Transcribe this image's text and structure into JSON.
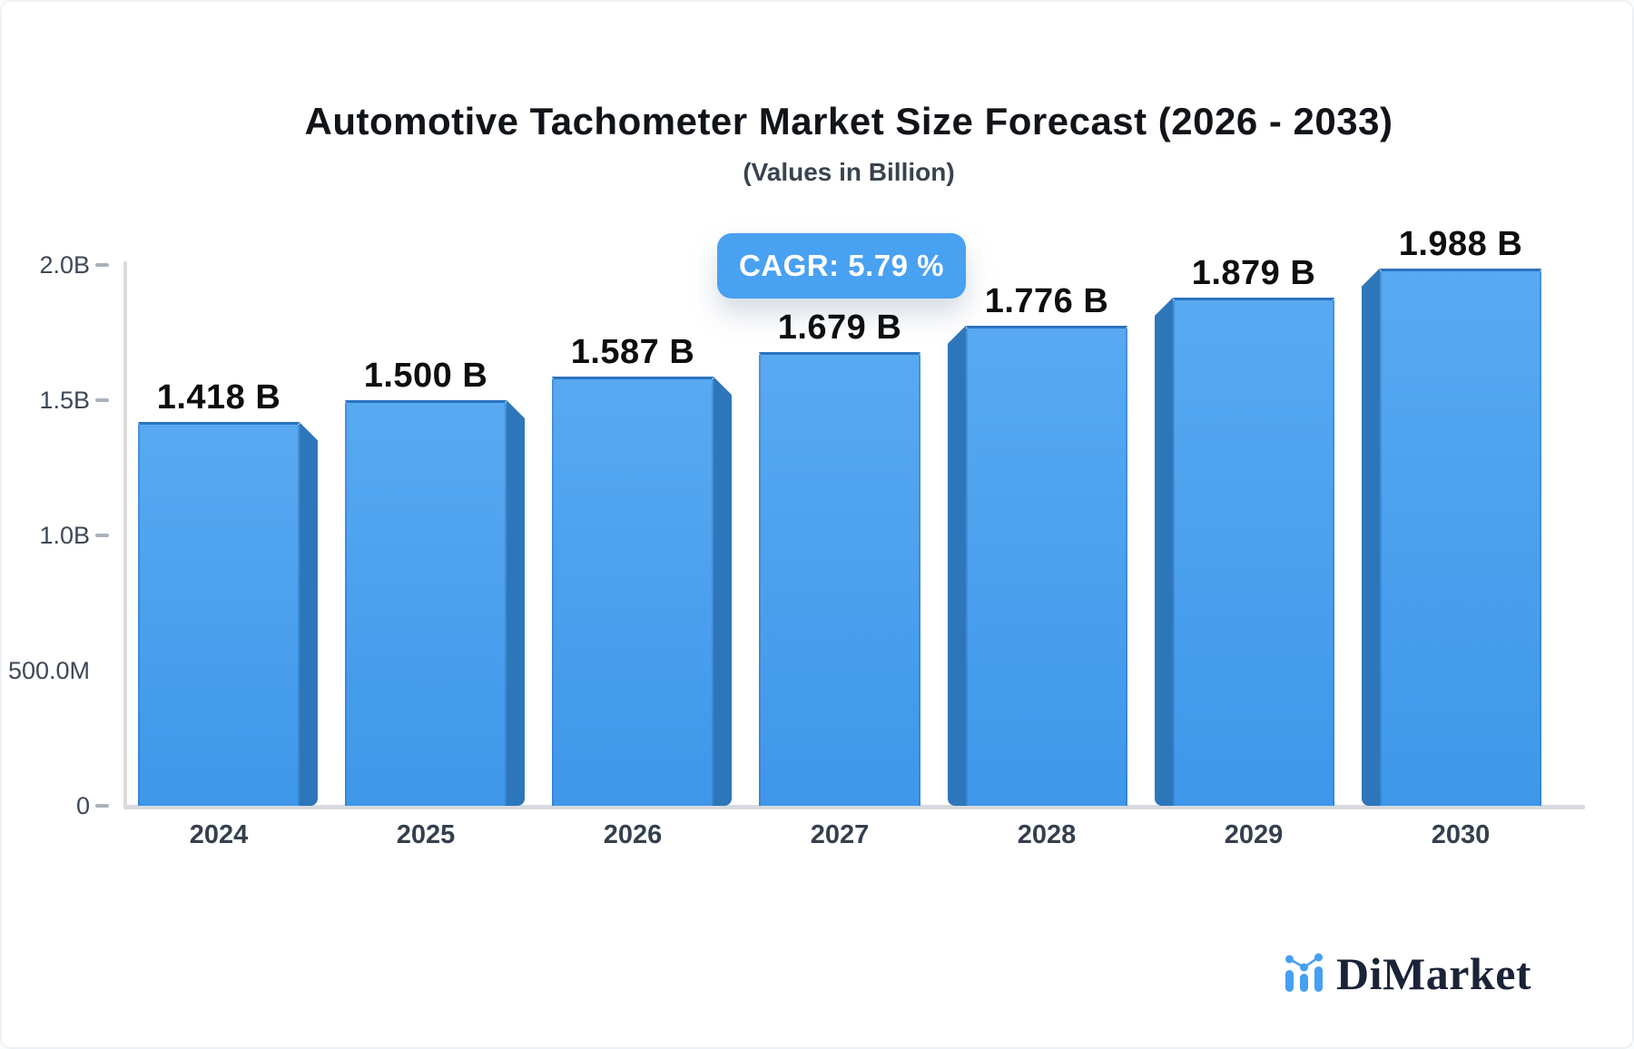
{
  "header": {
    "title": "Automotive Tachometer Market Size Forecast (2026 - 2033)",
    "subtitle": "(Values in Billion)",
    "cagr_label": "CAGR: 5.79 %"
  },
  "chart_data": {
    "type": "bar",
    "title": "Automotive Tachometer Market Size Forecast (2026 - 2033)",
    "subtitle": "(Values in Billion)",
    "unit": "Billion USD",
    "categories": [
      "2024",
      "2025",
      "2026",
      "2027",
      "2028",
      "2029",
      "2030"
    ],
    "values": [
      1.418,
      1.5,
      1.587,
      1.679,
      1.776,
      1.879,
      1.988
    ],
    "value_labels": [
      "1.418 B",
      "1.500 B",
      "1.587 B",
      "1.679 B",
      "1.776 B",
      "1.879 B",
      "1.988 B"
    ],
    "cagr_text": "CAGR: 5.79 %",
    "ylim": [
      0,
      2.0
    ],
    "y_ticks": [
      {
        "label": "2.0B",
        "value": 2.0,
        "dash": true
      },
      {
        "label": "1.5B",
        "value": 1.5,
        "dash": true
      },
      {
        "label": "1.0B",
        "value": 1.0,
        "dash": true
      },
      {
        "label": "500.0M",
        "value": 0.5,
        "dash": false
      },
      {
        "label": "0",
        "value": 0.0,
        "dash": true
      }
    ],
    "grid": false,
    "legend": false,
    "bar_style": "3d-beveled"
  },
  "colors": {
    "bar_face_top": "#58A9F1",
    "bar_face_bottom": "#3F97EA",
    "bar_side": "#2E76BA",
    "bar_top_edge": "#2A73BF",
    "bar_edge_soft": "rgba(38,104,176,0.35)",
    "badge_bg": "#49A1F1",
    "badge_text": "#FFFFFF",
    "axis_line": "#D7DADE",
    "tick_dash": "#AAB1BB",
    "logo_blue": "#459FF2",
    "logo_navy": "#1A2337"
  },
  "branding": {
    "name": "DiMarket",
    "icon": "bar-chart-logo-icon"
  }
}
